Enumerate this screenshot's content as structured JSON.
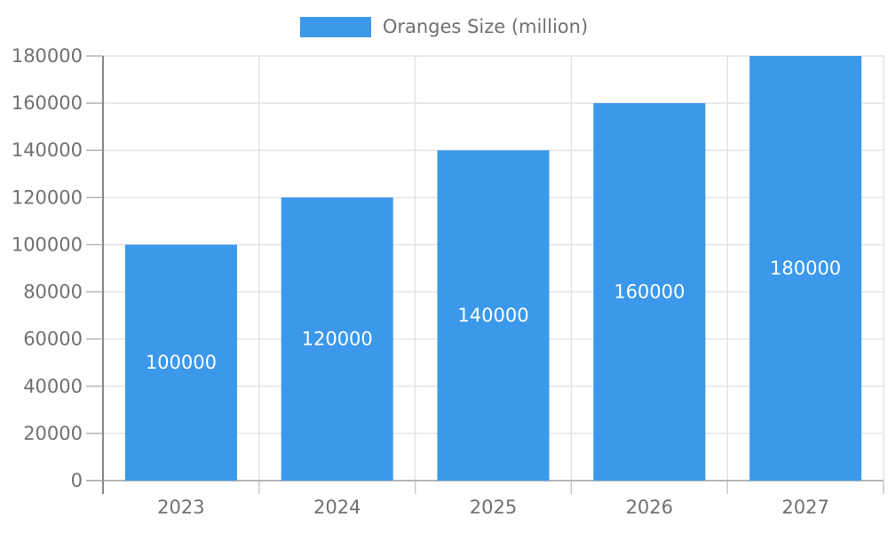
{
  "chart_data": {
    "type": "bar",
    "title": "",
    "legend": {
      "label": "Oranges Size (million)",
      "position": "top-center"
    },
    "categories": [
      "2023",
      "2024",
      "2025",
      "2026",
      "2027"
    ],
    "series": [
      {
        "name": "Oranges Size (million)",
        "values": [
          100000,
          120000,
          140000,
          160000,
          180000
        ]
      }
    ],
    "bar_value_labels": [
      "100000",
      "120000",
      "140000",
      "160000",
      "180000"
    ],
    "xlabel": "",
    "ylabel": "",
    "ylim": [
      0,
      180000
    ],
    "ytick_step": 20000,
    "ytick_labels": [
      "0",
      "20000",
      "40000",
      "60000",
      "80000",
      "100000",
      "120000",
      "140000",
      "160000",
      "180000"
    ],
    "grid": true,
    "legend_visible": true,
    "colors": {
      "bar": "#3B98EB",
      "grid": "#E4E4E4",
      "y_tick": "#B5B5B5",
      "x_axis_line": "#B5B5B5",
      "x_tick": "#C9C9C9",
      "y_axis_line": "#8C8C8C",
      "text": "#717171",
      "bar_label_text": "#FFFFFF",
      "background": "#FFFFFF"
    }
  }
}
